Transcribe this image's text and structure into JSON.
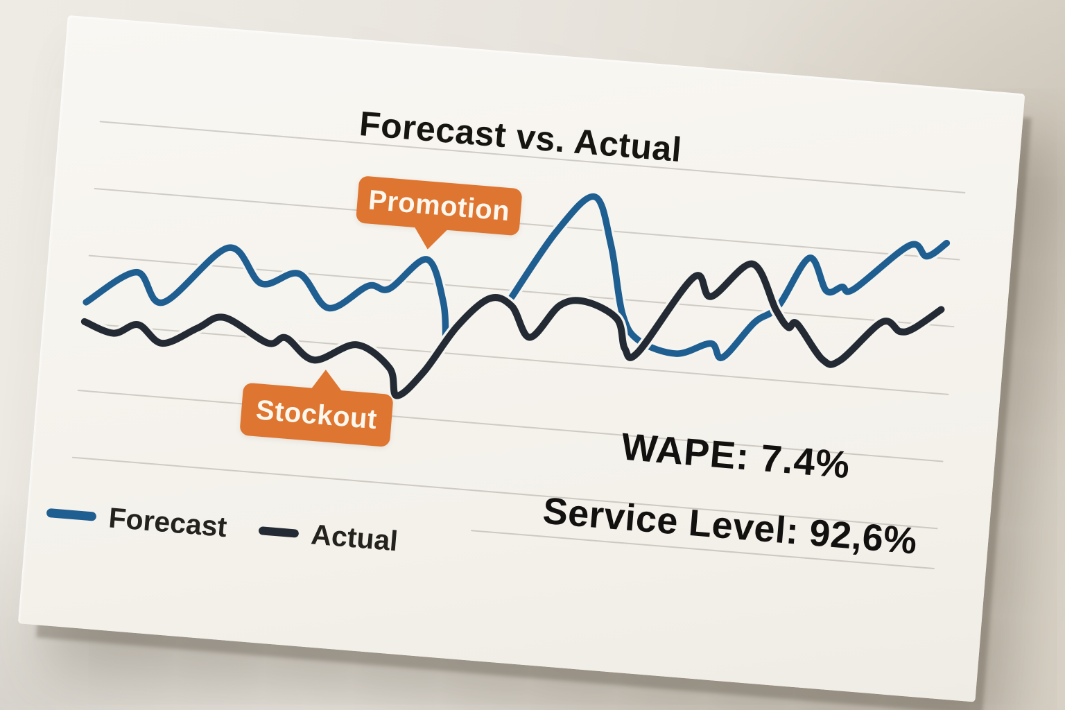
{
  "title": "Forecast vs. Actual",
  "stats": {
    "wape": "WAPE: 7.4%",
    "service_level": "Service Level: 92,6%"
  },
  "chart_data": {
    "type": "line",
    "title": "Forecast vs. Actual",
    "xlabel": "",
    "ylabel": "",
    "x_axis": {
      "tick_labels_visible": false
    },
    "y_axis": {
      "tick_labels_visible": false,
      "note": "no numeric axes shown; values are relative 0-100 estimated from line heights"
    },
    "grid": {
      "style": "horizontal",
      "line_count": 7
    },
    "legend": {
      "position": "bottom-left",
      "entries": [
        "Forecast",
        "Actual"
      ]
    },
    "series": [
      {
        "name": "Forecast",
        "color": "#1f5e90",
        "gap_note": "visible break in the line between x=42.4 and x=49.7",
        "segments": [
          [
            [
              0,
              39.4
            ],
            [
              5.6,
              52.3
            ],
            [
              9,
              41.7
            ],
            [
              16.1,
              64.4
            ],
            [
              20.3,
              51.9
            ],
            [
              24.6,
              56.8
            ],
            [
              28.4,
              44.7
            ],
            [
              32.8,
              54.3
            ],
            [
              35.3,
              53.9
            ],
            [
              39.4,
              66.2
            ],
            [
              41.7,
              51
            ],
            [
              42.4,
              35.9
            ]
          ],
          [
            [
              49.7,
              54.6
            ],
            [
              54.3,
              80.8
            ],
            [
              58.4,
              95.1
            ],
            [
              60.8,
              77.3
            ],
            [
              62.8,
              51.6
            ],
            [
              65,
              42
            ],
            [
              69.5,
              38.3
            ],
            [
              73.4,
              43.2
            ],
            [
              74.9,
              38.3
            ],
            [
              78.3,
              52.5
            ],
            [
              80.9,
              59.3
            ],
            [
              84.1,
              78.6
            ],
            [
              86.4,
              66.7
            ],
            [
              88.2,
              68.7
            ],
            [
              89.6,
              68.2
            ],
            [
              95.7,
              86.5
            ],
            [
              97.8,
              82.9
            ],
            [
              100,
              88.5
            ]
          ]
        ]
      },
      {
        "name": "Actual",
        "color": "#232a33",
        "segments": [
          [
            [
              0,
              32
            ],
            [
              3.5,
              28.5
            ],
            [
              6.3,
              32.5
            ],
            [
              9.3,
              26.2
            ],
            [
              13.3,
              33.1
            ],
            [
              16.3,
              37.9
            ],
            [
              21.6,
              29.6
            ],
            [
              23.7,
              32.1
            ],
            [
              27.2,
              24.6
            ],
            [
              32,
              31.7
            ],
            [
              36.1,
              23.9
            ],
            [
              37.2,
              13.7
            ],
            [
              40.1,
              23.4
            ],
            [
              43.6,
              41.8
            ],
            [
              47.1,
              53.3
            ],
            [
              49.8,
              51.1
            ],
            [
              52.2,
              39.9
            ],
            [
              55.4,
              52.9
            ],
            [
              58.4,
              55.1
            ],
            [
              62.2,
              49.6
            ],
            [
              63.4,
              38.6
            ],
            [
              65,
              37.7
            ],
            [
              70.8,
              67.8
            ],
            [
              73,
              61
            ],
            [
              77.5,
              74.6
            ],
            [
              80.7,
              57.9
            ],
            [
              82.3,
              51.7
            ],
            [
              83.3,
              53.3
            ],
            [
              86.6,
              40.6
            ],
            [
              88.7,
              40.9
            ],
            [
              93.2,
              56.6
            ],
            [
              95.4,
              53.6
            ],
            [
              97,
              55.3
            ],
            [
              100,
              63.2
            ]
          ]
        ]
      }
    ],
    "annotations": [
      {
        "label": "Promotion",
        "color": "#de7530",
        "text_color": "#fdf7ee",
        "tail": "down",
        "target": {
          "series": "Forecast",
          "x": 39.4,
          "value": 66.2
        }
      },
      {
        "label": "Stockout",
        "color": "#de7530",
        "text_color": "#fdf7ee",
        "tail": "up",
        "target": {
          "series": "Actual",
          "x": 37.2,
          "value": 13.7
        }
      }
    ]
  }
}
